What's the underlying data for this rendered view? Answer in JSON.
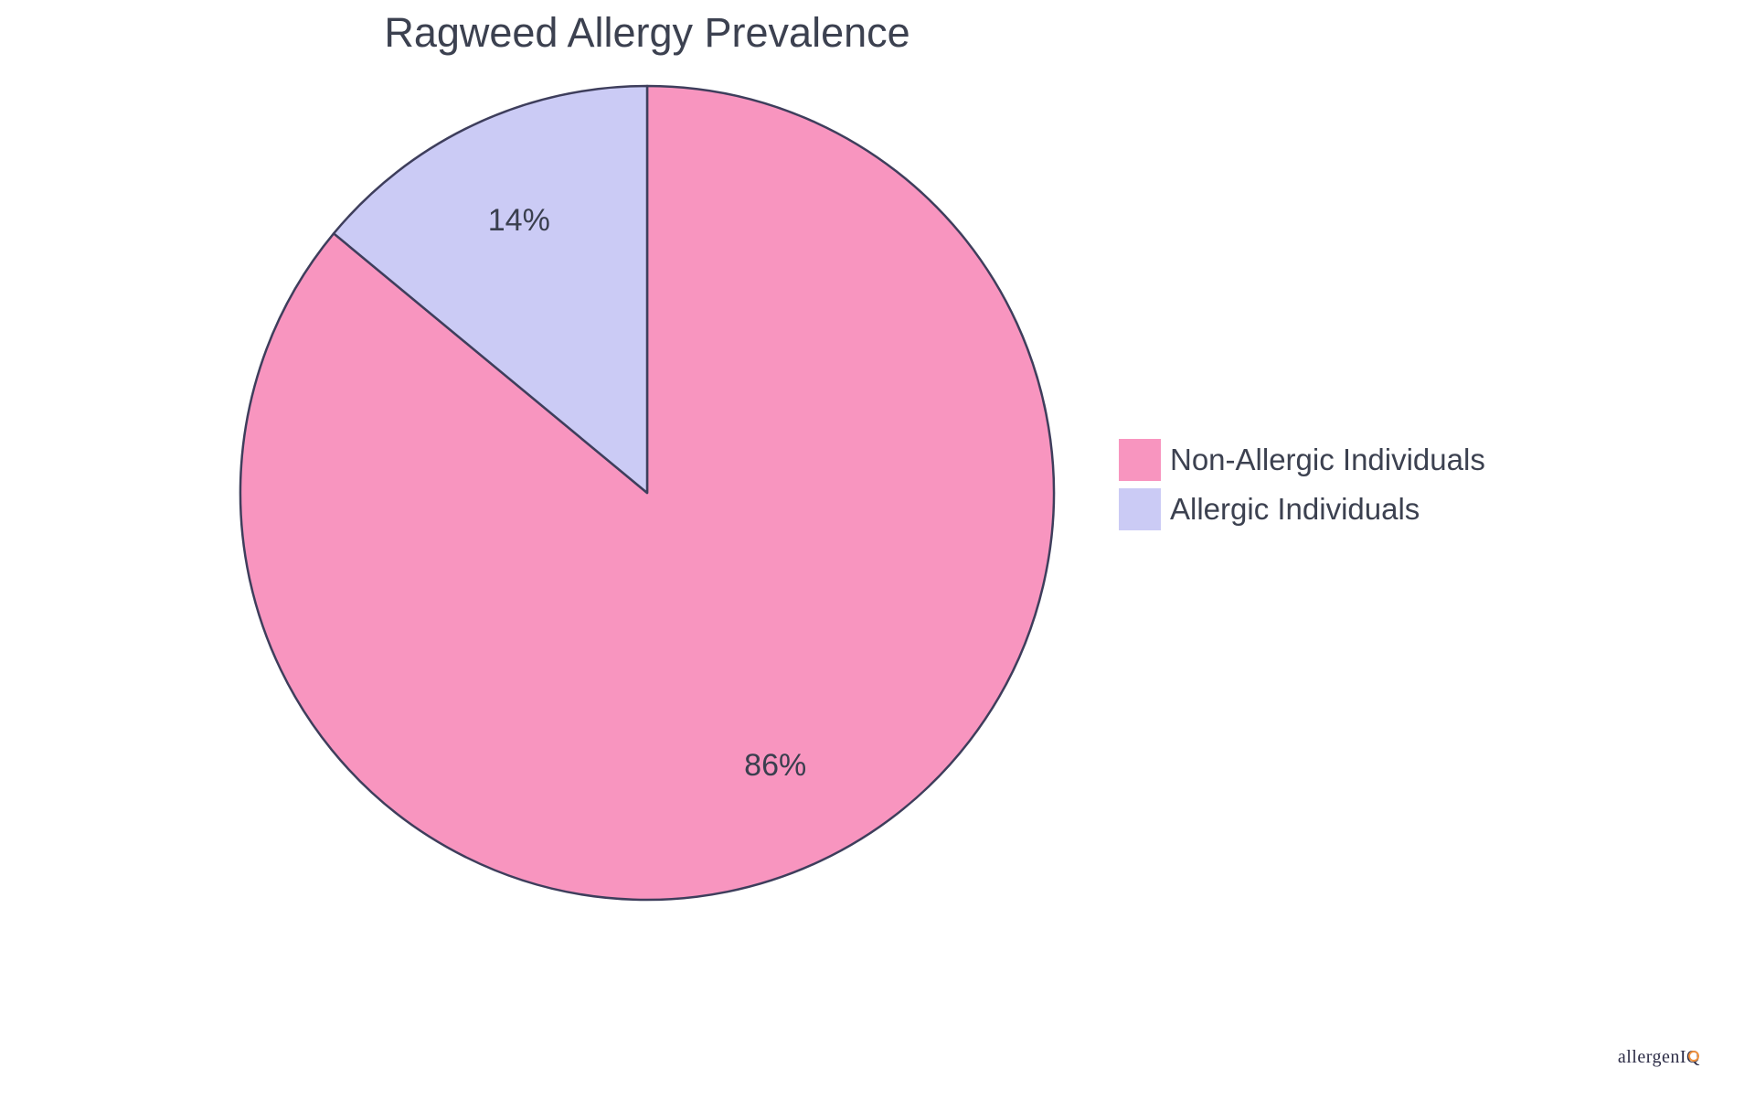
{
  "chart_data": {
    "type": "pie",
    "title": "Ragweed Allergy Prevalence",
    "labels": [
      "Non-Allergic Individuals",
      "Allergic Individuals"
    ],
    "values": [
      86,
      14
    ],
    "percent_labels": [
      "86%",
      "14%"
    ],
    "colors": [
      "#F895BF",
      "#CBCBF5"
    ],
    "stroke_color": "#3E3E5C",
    "legend_position": "right",
    "start_angle_deg": -90,
    "direction": "clockwise"
  },
  "legend": {
    "items": [
      {
        "label": "Non-Allergic Individuals",
        "color": "#F895BF"
      },
      {
        "label": "Allergic Individuals",
        "color": "#CBCBF5"
      }
    ]
  },
  "watermark": {
    "text": "allergenIQ"
  }
}
